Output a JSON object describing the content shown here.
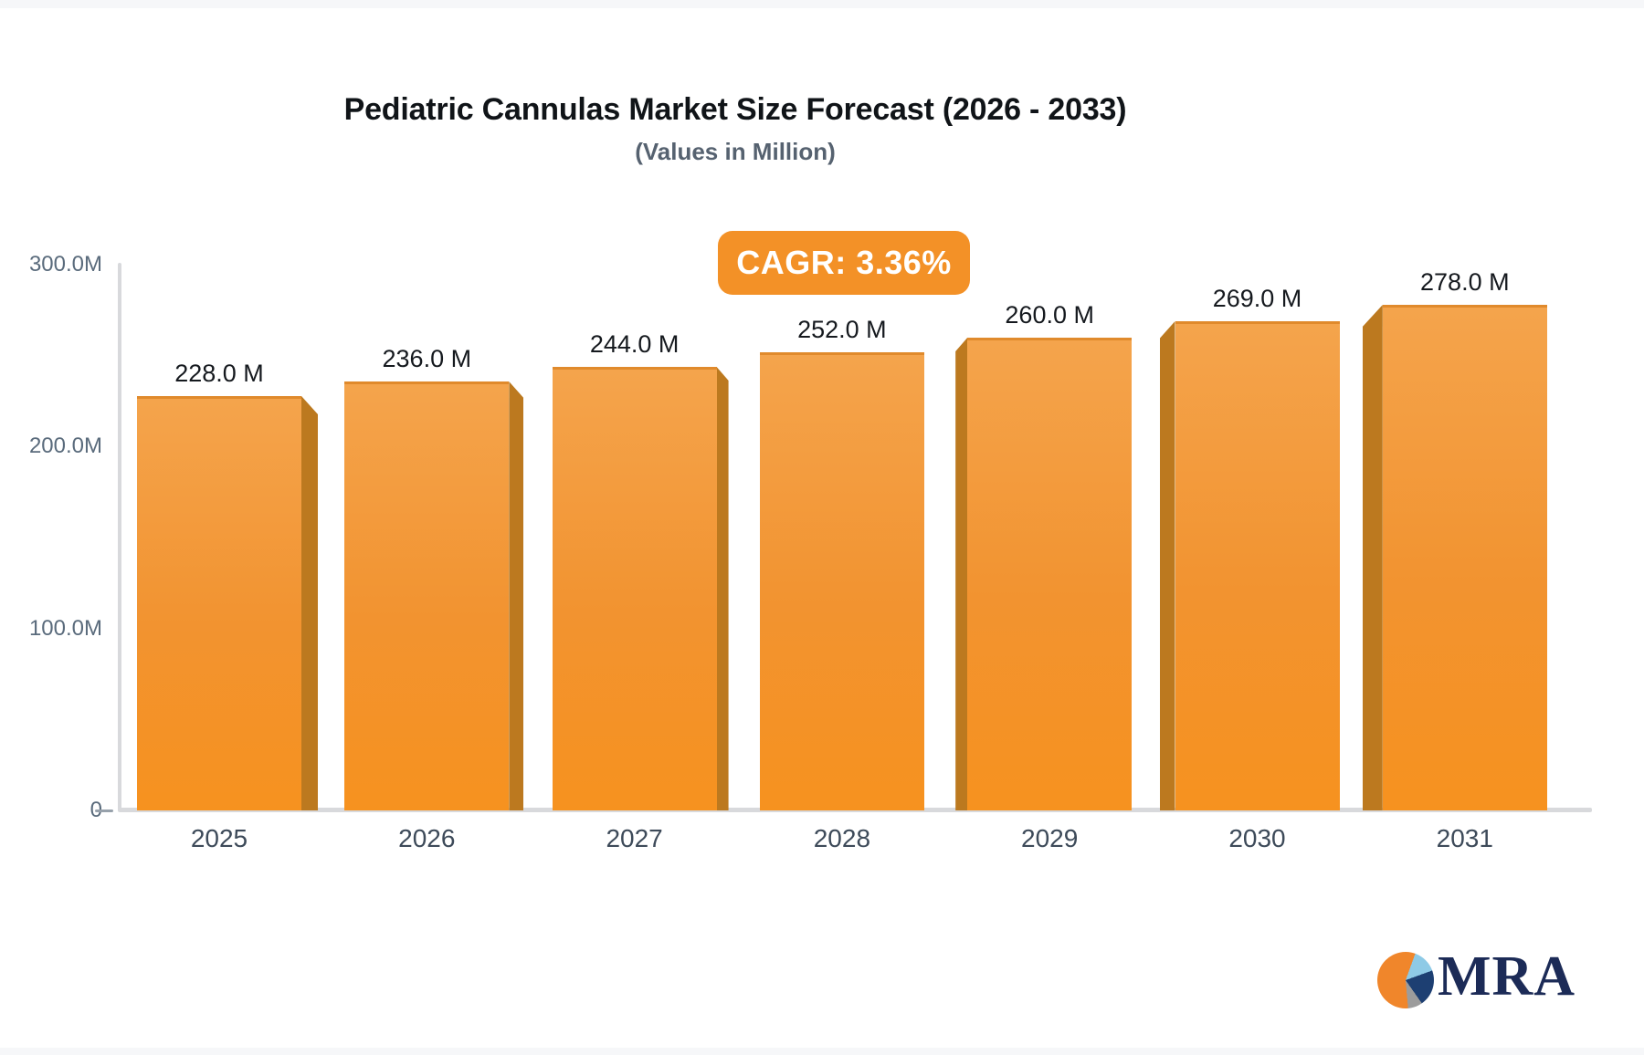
{
  "header": {
    "title": "Pediatric Cannulas Market Size Forecast (2026 - 2033)",
    "subtitle": "(Values in Million)"
  },
  "badge": {
    "label": "CAGR: 3.36%",
    "bg": "#f39127",
    "text_color": "#ffffff"
  },
  "chart_data": {
    "type": "bar",
    "title": "Pediatric Cannulas Market Size Forecast (2026 - 2033)",
    "subtitle": "(Values in Million)",
    "unit": "Million",
    "cagr": "3.36%",
    "categories": [
      "2025",
      "2026",
      "2027",
      "2028",
      "2029",
      "2030",
      "2031"
    ],
    "values": [
      228.0,
      236.0,
      244.0,
      252.0,
      260.0,
      269.0,
      278.0
    ],
    "value_labels": [
      "228.0 M",
      "236.0 M",
      "244.0 M",
      "252.0 M",
      "260.0 M",
      "269.0 M",
      "278.0 M"
    ],
    "ylim": [
      0,
      300
    ],
    "y_ticks": [
      {
        "value": 300,
        "label": "300.0M"
      },
      {
        "value": 200,
        "label": "200.0M"
      },
      {
        "value": 100,
        "label": "100.0M"
      },
      {
        "value": 0,
        "label": "0"
      }
    ],
    "grid": false,
    "legend": "none",
    "colors": {
      "bar_top": "#f4a44c",
      "bar_mid": "#f29330",
      "bar_bottom": "#f6921f",
      "bar_side": "#bc791f",
      "bar_edge": "#e08a2c",
      "axis": "#d8d9dc",
      "y_label": "#5a6b7c",
      "x_label": "#3d4a59",
      "value_label": "#15191e",
      "badge_bg": "#f39127"
    }
  },
  "logo": {
    "text": "MRA",
    "text_color": "#1c2b57",
    "pie_colors": {
      "orange": "#f0862b",
      "light_blue": "#8ecae6",
      "navy": "#1d3f72",
      "gray": "#9c9c9c"
    }
  }
}
